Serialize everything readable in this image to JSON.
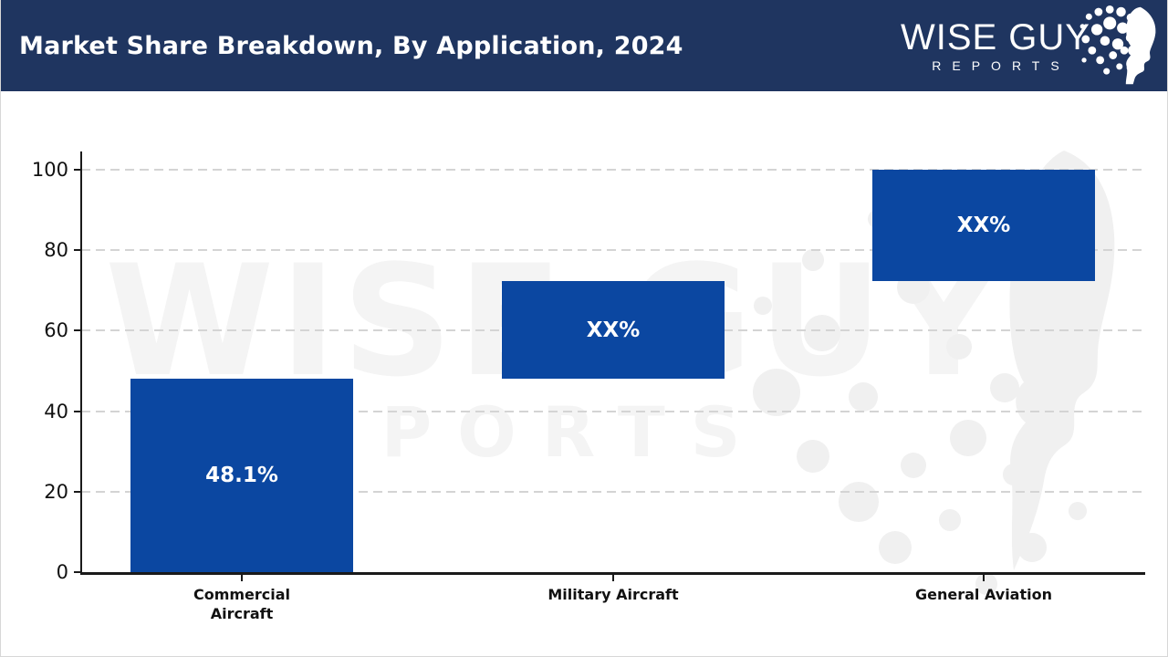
{
  "header": {
    "logo": {
      "line1": "WISE GUY",
      "line2": "REPORTS"
    }
  },
  "watermark": {
    "line1": "WISE GUY",
    "line2": "REPORTS"
  },
  "chart_data": {
    "type": "bar",
    "subtype": "waterfall",
    "title": "Market Share Breakdown, By Application, 2024",
    "categories": [
      "Commercial\nAircraft",
      "Military Aircraft",
      "General Aviation"
    ],
    "series": [
      {
        "name": "Market share (%)",
        "segments": [
          {
            "category": "Commercial Aircraft",
            "start": 0,
            "end": 48.1,
            "label": "48.1%"
          },
          {
            "category": "Military Aircraft",
            "start": 48.1,
            "end": 72.3,
            "label": "XX%"
          },
          {
            "category": "General Aviation",
            "start": 72.3,
            "end": 100,
            "label": "XX%"
          }
        ]
      }
    ],
    "ylim": [
      0,
      100
    ],
    "yticks": [
      0,
      20,
      40,
      60,
      80,
      100
    ],
    "grid": {
      "horizontal": true,
      "style": "dashed"
    },
    "legend_visible": false,
    "xlabel": "",
    "ylabel": ""
  },
  "colors": {
    "header_bg": "#1f3560",
    "title_text": "#ffffff",
    "bar": "#0b47a1",
    "bar_label": "#ffffff",
    "axis": "#1a1a1a",
    "grid": "#d4d4d4",
    "tick_text": "#111111",
    "watermark": "#f4f4f4",
    "frame_border": "#d7d7d7"
  }
}
